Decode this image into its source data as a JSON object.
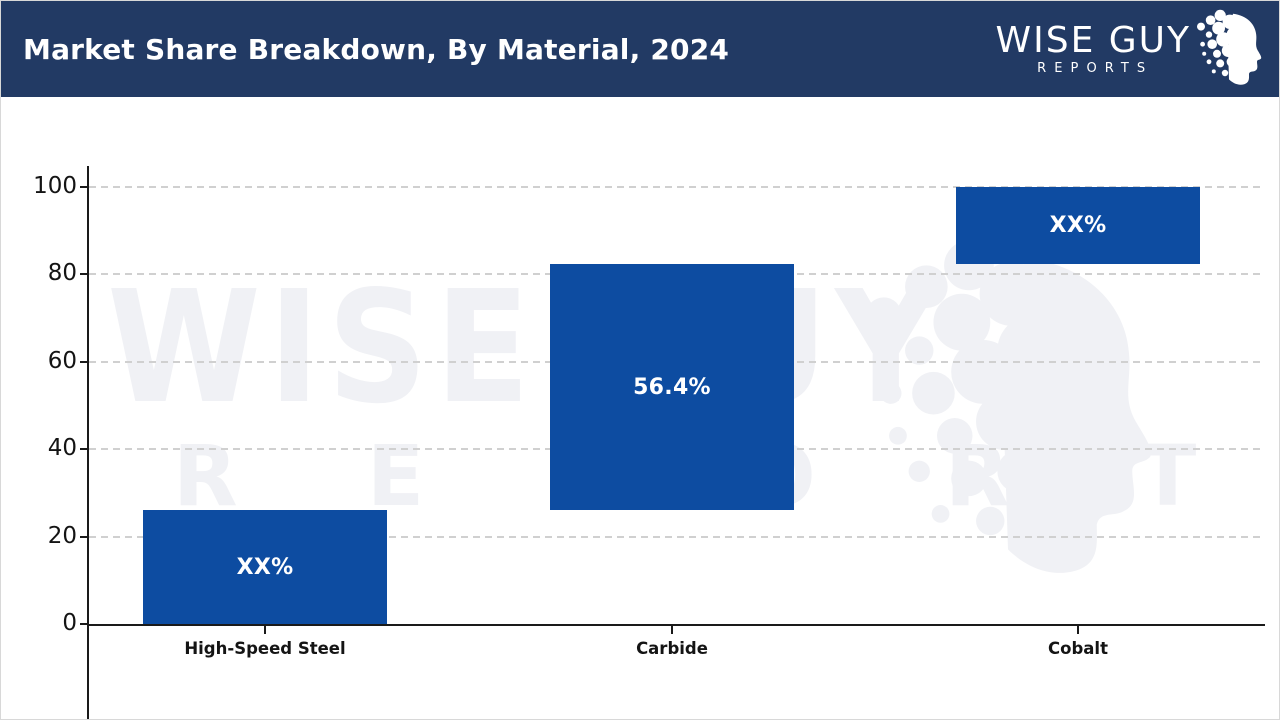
{
  "header": {
    "title": "Market Share Breakdown, By Material, 2024",
    "bg_color": "#223A64",
    "logo": {
      "line1": "WISE GUY",
      "line2": "REPORTS"
    }
  },
  "watermark": {
    "line1": "WISE GUY",
    "line2": "REPORTS"
  },
  "chart_data": {
    "type": "bar",
    "subtype": "floating-stacked-percent",
    "title": "Market Share Breakdown, By Material, 2024",
    "categories": [
      "High-Speed Steel",
      "Carbide",
      "Cobalt"
    ],
    "series": [
      {
        "name": "High-Speed Steel",
        "start": 0,
        "end": 26,
        "label": "XX%"
      },
      {
        "name": "Carbide",
        "start": 26,
        "end": 82.4,
        "label": "56.4%"
      },
      {
        "name": "Cobalt",
        "start": 82.4,
        "end": 100,
        "label": "XX%"
      }
    ],
    "xlabel": "",
    "ylabel": "",
    "ylim": [
      0,
      100
    ],
    "yticks": [
      0,
      20,
      40,
      60,
      80,
      100
    ],
    "grid": "dashed-horizontal",
    "legend": "none",
    "bar_color": "#0D4CA1",
    "bar_label_color": "#ffffff",
    "axis_color": "#1a1a1a",
    "gridline_color": "#d0d0d0",
    "watermark_color": "#f0f1f5"
  }
}
